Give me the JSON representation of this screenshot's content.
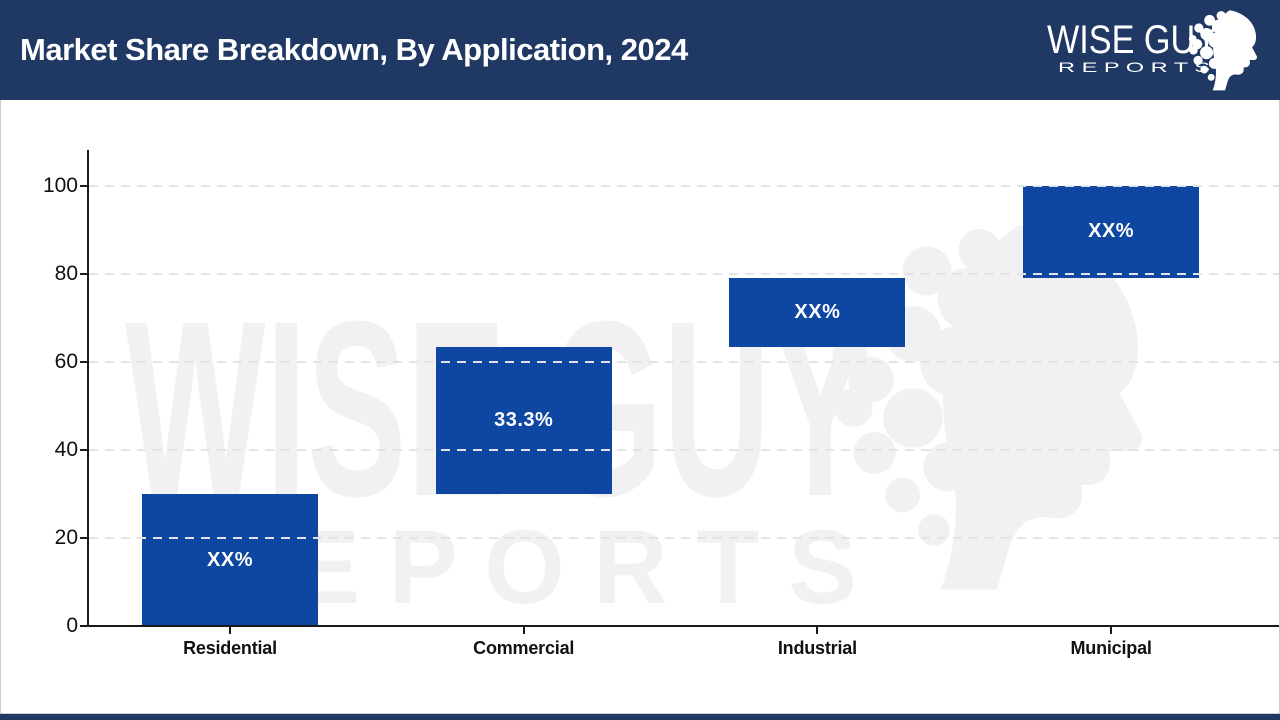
{
  "header": {
    "title": "Market Share Breakdown, By Application, 2024",
    "logo": {
      "primary": "WISE GUY",
      "secondary": "R E P O R T S"
    }
  },
  "watermark": {
    "primary": "WISE GUY",
    "secondary": "R E P O R T S"
  },
  "colors": {
    "header_bg": "#1f3864",
    "footer_bg": "#1f3864",
    "bar_fill": "#0d47a1",
    "bar_label_text": "#ffffff",
    "axis": "#1a1a1a",
    "gridline": "#e3e3e3",
    "tick_label_text": "#111111",
    "watermark_text": "#f1f1f4",
    "page_border": "#cccccc"
  },
  "chart_data": {
    "type": "bar",
    "subtype": "floating-segment-waterfall",
    "title": "Market Share Breakdown, By Application, 2024",
    "categories": [
      "Residential",
      "Commercial",
      "Industrial",
      "Municipal"
    ],
    "segments": [
      {
        "category": "Residential",
        "start": 0,
        "end": 30,
        "label": "XX%"
      },
      {
        "category": "Commercial",
        "start": 30,
        "end": 63.3,
        "label": "33.3%"
      },
      {
        "category": "Industrial",
        "start": 63.3,
        "end": 79.2,
        "label": "XX%"
      },
      {
        "category": "Municipal",
        "start": 79.2,
        "end": 100,
        "label": "XX%"
      }
    ],
    "y_ticks": [
      0,
      20,
      40,
      60,
      80,
      100
    ],
    "ylim": [
      0,
      108
    ],
    "xlabel": "",
    "ylabel": "",
    "grid": "dashed-horizontal-above-bars",
    "legend": "none"
  }
}
